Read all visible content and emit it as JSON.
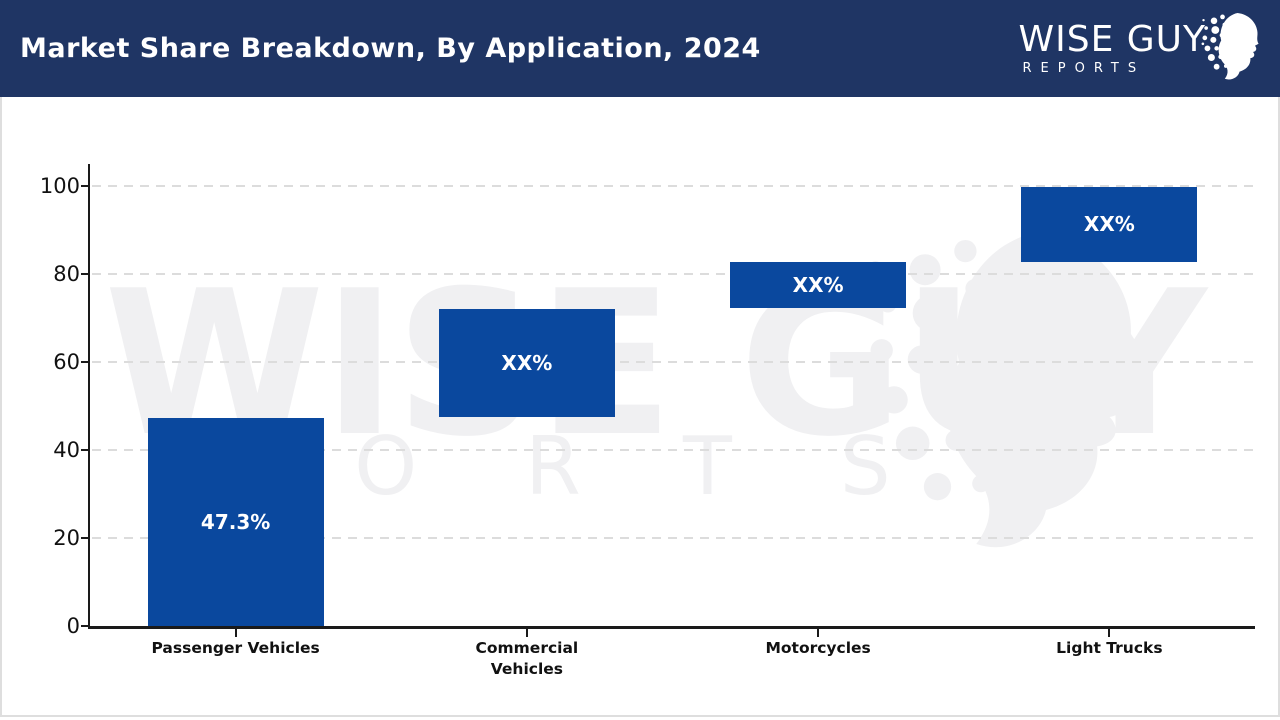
{
  "header": {
    "title": "Market Share Breakdown, By Application, 2024",
    "brand": {
      "name": "WISE GUY",
      "subtitle": "REPORTS"
    },
    "bg_color": "#1f3564",
    "text_color": "#ffffff"
  },
  "watermark": {
    "wordmark": "WISE GUY",
    "subtitle": "PORTS",
    "color": "#f0f0f2"
  },
  "chart_data": {
    "type": "bar",
    "subtype": "waterfall",
    "title": "Market Share Breakdown, By Application, 2024",
    "categories": [
      "Passenger Vehicles",
      "Commercial\nVehicles",
      "Motorcycles",
      "Light Trucks"
    ],
    "segments": [
      {
        "category": "Passenger Vehicles",
        "start": 0,
        "end": 47.3,
        "label": "47.3%"
      },
      {
        "category": "Commercial Vehicles",
        "start": 47.4,
        "end": 71.9,
        "label": "XX%"
      },
      {
        "category": "Motorcycles",
        "start": 72.1,
        "end": 82.6,
        "label": "XX%"
      },
      {
        "category": "Light Trucks",
        "start": 82.7,
        "end": 99.7,
        "label": "XX%"
      }
    ],
    "xlabel": "",
    "ylabel": "",
    "yticks": [
      0,
      20,
      40,
      60,
      80,
      100
    ],
    "ylim": [
      0,
      105
    ],
    "grid": "horizontal-dashed",
    "legend": "none",
    "bar_color": "#0a489e",
    "bar_label_color": "#ffffff",
    "axis_color": "#1a1a1a",
    "grid_color": "#dcdcdc"
  }
}
